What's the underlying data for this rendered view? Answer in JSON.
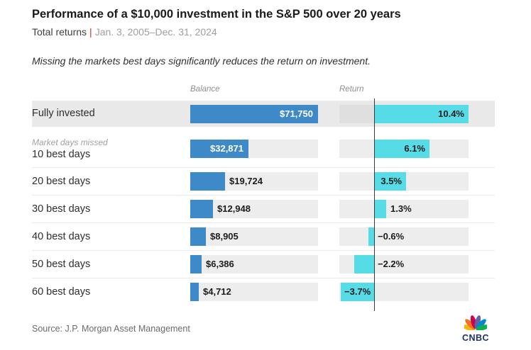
{
  "header": {
    "title": "Performance of a $10,000 investment in the S&P 500 over 20 years",
    "subtitle_label": "Total returns",
    "subtitle_separator": "|",
    "subtitle_dates": "Jan. 3, 2005–Dec. 31, 2024",
    "note": "Missing the markets best days significantly reduces the return on investment."
  },
  "chart_data": {
    "type": "bar",
    "orientation": "horizontal",
    "title": "Performance of a $10,000 investment in the S&P 500 over 20 years",
    "subtitle": "Total returns | Jan. 3, 2005–Dec. 31, 2024",
    "note": "Missing the markets best days significantly reduces the return on investment.",
    "categories": [
      "Fully invested",
      "10 best days",
      "20 best days",
      "30 best days",
      "40 best days",
      "50 best days",
      "60 best days"
    ],
    "category_eyebrows": [
      "",
      "Market days missed",
      "",
      "",
      "",
      "",
      ""
    ],
    "highlighted_row_index": 0,
    "legend_position": "none",
    "grid": false,
    "series": [
      {
        "name": "Balance",
        "unit": "USD",
        "values": [
          71750,
          32871,
          19724,
          12948,
          8905,
          6386,
          4712
        ],
        "labels": [
          "$71,750",
          "$32,871",
          "$19,724",
          "$12,948",
          "$8,905",
          "$6,386",
          "$4,712"
        ],
        "axis_max": 71750
      },
      {
        "name": "Return",
        "unit": "percent annualized",
        "values": [
          10.4,
          6.1,
          3.5,
          1.3,
          -0.6,
          -2.2,
          -3.7
        ],
        "labels": [
          "10.4%",
          "6.1%",
          "3.5%",
          "1.3%",
          "−0.6%",
          "−2.2%",
          "−3.7%"
        ],
        "axis_range": [
          -3.8,
          10.4
        ]
      }
    ],
    "source": "Source: J.P. Morgan Asset Management"
  },
  "footer": {
    "source": "Source: J.P. Morgan Asset Management",
    "logo_text": "CNBC"
  },
  "colors": {
    "balance_bar": "#3E8AC8",
    "return_bar": "#55DCE6",
    "row_highlight": "#E9E9E9",
    "track": "#EDEDED",
    "track_dark": "#DFDFDF",
    "zero_line": "#3A3A3A",
    "accent_red": "#C9342C",
    "logo_navy": "#1E3264",
    "peacock_feathers": [
      "#F5B50F",
      "#F37021",
      "#CC004C",
      "#6460AA",
      "#0089D0",
      "#0DB14B"
    ]
  }
}
